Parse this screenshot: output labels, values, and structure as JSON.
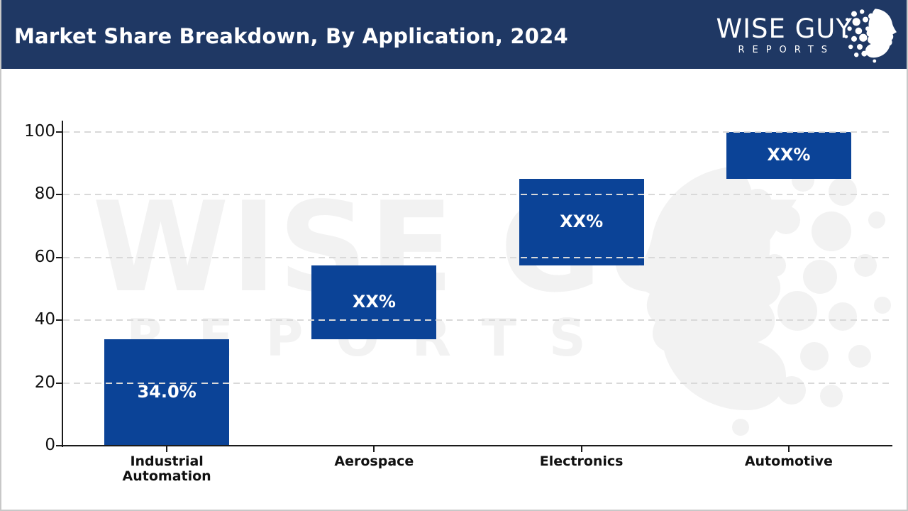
{
  "header": {
    "title": "Market Share Breakdown, By Application, 2024",
    "logo": {
      "line1": "WISE GUY",
      "line2": "REPORTS"
    }
  },
  "watermark": {
    "line1": "WISE GUY",
    "line2": "REPORTS"
  },
  "colors": {
    "header_bg": "#1f3864",
    "bar": "#0b4397",
    "bar_label": "#ffffff",
    "grid": "#d9d9d9",
    "axis": "#1a1a1a",
    "watermark": "#f2f2f2"
  },
  "chart_data": {
    "type": "bar",
    "subtype": "waterfall",
    "title": "Market Share Breakdown, By Application, 2024",
    "categories": [
      "Industrial Automation",
      "Aerospace",
      "Electronics",
      "Automotive"
    ],
    "segments": [
      {
        "category": "Industrial Automation",
        "start": 0,
        "end": 34.0,
        "label": "34.0%"
      },
      {
        "category": "Aerospace",
        "start": 34.0,
        "end": 57.5,
        "label": "XX%"
      },
      {
        "category": "Electronics",
        "start": 57.5,
        "end": 85.0,
        "label": "XX%"
      },
      {
        "category": "Automotive",
        "start": 85.0,
        "end": 100.0,
        "label": "XX%"
      }
    ],
    "xlabel": "",
    "ylabel": "",
    "ylim": [
      0,
      100
    ],
    "yticks": [
      0,
      20,
      40,
      60,
      80,
      100
    ],
    "grid": "dashed-horizontal-on-top",
    "legend": "none"
  }
}
